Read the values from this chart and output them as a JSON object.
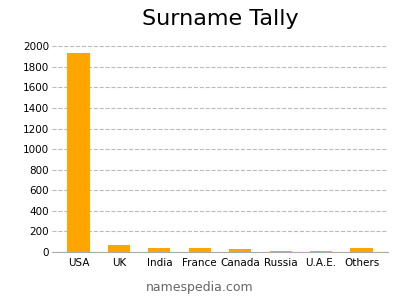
{
  "title": "Surname Tally",
  "categories": [
    "USA",
    "UK",
    "India",
    "France",
    "Canada",
    "Russia",
    "U.A.E.",
    "Others"
  ],
  "values": [
    1930,
    65,
    40,
    35,
    25,
    10,
    8,
    35
  ],
  "bar_color": "#FFA500",
  "ylim": [
    0,
    2100
  ],
  "yticks": [
    0,
    200,
    400,
    600,
    800,
    1000,
    1200,
    1400,
    1600,
    1800,
    2000
  ],
  "background_color": "#ffffff",
  "grid_color": "#bbbbbb",
  "watermark": "namespedia.com",
  "title_fontsize": 16,
  "tick_fontsize": 7.5,
  "watermark_fontsize": 9
}
